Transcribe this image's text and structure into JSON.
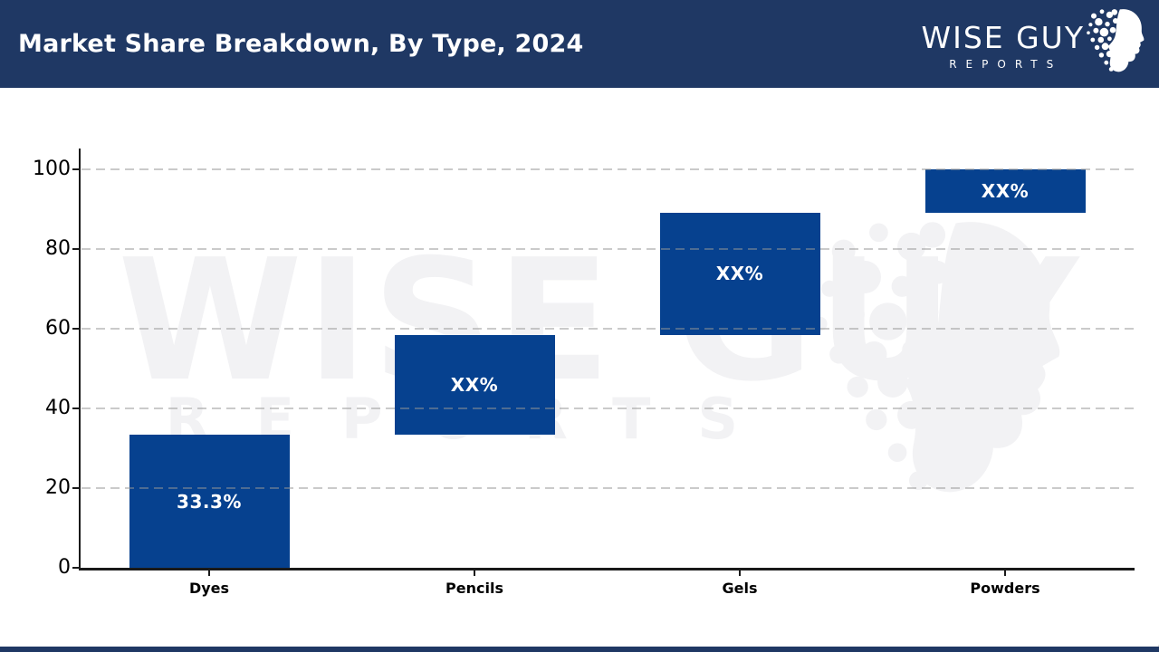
{
  "header": {
    "title": "Market Share Breakdown, By Type, 2024",
    "logo_line1": "WISE GUY",
    "logo_line2": "REPORTS",
    "bg_color": "#1f3864"
  },
  "watermark": {
    "line1": "WISE GUY",
    "line2": "REPORTS"
  },
  "chart_data": {
    "type": "bar",
    "subtype": "waterfall",
    "title": "Market Share Breakdown, By Type, 2024",
    "categories": [
      "Dyes",
      "Pencils",
      "Gels",
      "Powders"
    ],
    "segments": [
      {
        "category": "Dyes",
        "start": 0,
        "end": 33.3,
        "label": "33.3%"
      },
      {
        "category": "Pencils",
        "start": 33.3,
        "end": 58.3,
        "label": "XX%"
      },
      {
        "category": "Gels",
        "start": 58.3,
        "end": 89.2,
        "label": "XX%"
      },
      {
        "category": "Powders",
        "start": 89.2,
        "end": 100,
        "label": "XX%"
      }
    ],
    "y_ticks": [
      0,
      20,
      40,
      60,
      80,
      100
    ],
    "ylim": [
      0,
      105
    ],
    "xlabel": "",
    "ylabel": "",
    "grid": true,
    "legend": false,
    "bar_color": "#06418f",
    "gridline_color": "#d9d9d9",
    "axis_color": "#1a1a1a"
  }
}
